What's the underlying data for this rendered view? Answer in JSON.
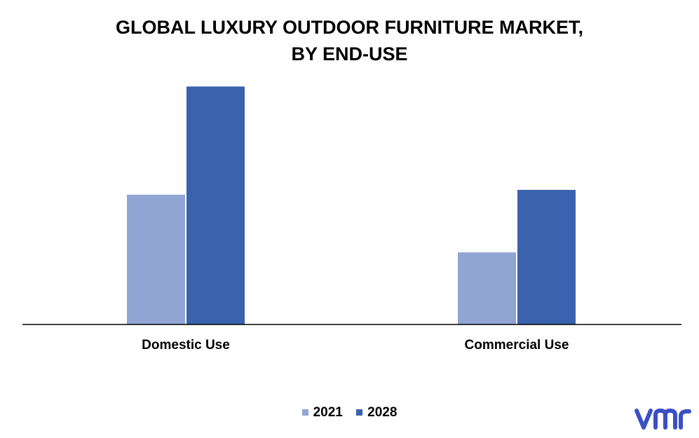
{
  "chart_data": {
    "type": "bar",
    "title_lines": [
      "GLOBAL LUXURY OUTDOOR FURNITURE MARKET,",
      "BY END-USE"
    ],
    "categories": [
      "Domestic Use",
      "Commercial Use"
    ],
    "series": [
      {
        "name": "2021",
        "values": [
          5.4,
          3.0
        ],
        "color": "#91a5d4"
      },
      {
        "name": "2028",
        "values": [
          9.9,
          5.6
        ],
        "color": "#3a62ad"
      }
    ],
    "xlabel": "",
    "ylabel": "",
    "ylim": [
      0,
      10
    ],
    "grid": false,
    "legend_position": "bottom-center"
  },
  "brand": {
    "logo_icon": "vmr-logo-icon",
    "color": "#3b4fc4"
  }
}
